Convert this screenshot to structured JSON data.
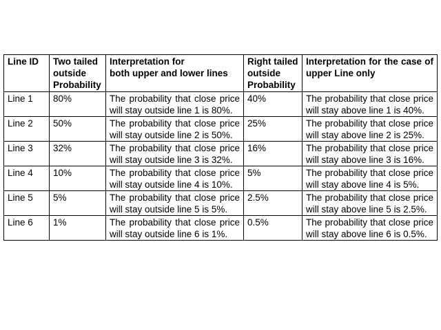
{
  "page": {
    "background_color": "#ffffff",
    "text_color": "#000000",
    "border_color": "#000000"
  },
  "table": {
    "columns": [
      {
        "label": "Line ID"
      },
      {
        "label": "Two tailed\noutside\nProbability"
      },
      {
        "label": "Interpretation for\nboth upper and lower lines"
      },
      {
        "label": "Right tailed\noutside\nProbability"
      },
      {
        "label": "Interpretation for the case of\nupper Line only"
      }
    ],
    "rows": [
      {
        "line_id": "Line 1",
        "two_tailed_probability": "80%",
        "both_lines_interpretation": "The probability that close price\nwill stay outside line 1 is 80%.",
        "right_tailed_probability": "40%",
        "upper_line_interpretation": "The probability that close price\nwill stay above line 1 is 40%."
      },
      {
        "line_id": "Line 2",
        "two_tailed_probability": "50%",
        "both_lines_interpretation": "The probability that close price\nwill stay outside line 2 is 50%.",
        "right_tailed_probability": "25%",
        "upper_line_interpretation": "The probability that close price\nwill stay above line 2 is 25%."
      },
      {
        "line_id": "Line 3",
        "two_tailed_probability": "32%",
        "both_lines_interpretation": "The probability that close price\nwill stay outside line 3 is 32%.",
        "right_tailed_probability": "16%",
        "upper_line_interpretation": "The probability that close price\nwill stay above line 3 is 16%."
      },
      {
        "line_id": "Line 4",
        "two_tailed_probability": "10%",
        "both_lines_interpretation": "The probability that close price\nwill stay outside line 4 is 10%.",
        "right_tailed_probability": "5%",
        "upper_line_interpretation": "The probability that close price\nwill stay above line 4 is 5%."
      },
      {
        "line_id": "Line 5",
        "two_tailed_probability": "5%",
        "both_lines_interpretation": "The probability that close price\nwill stay outside line 5 is 5%.",
        "right_tailed_probability": "2.5%",
        "upper_line_interpretation": "The probability that close price\nwill stay above line 5 is 2.5%."
      },
      {
        "line_id": "Line 6",
        "two_tailed_probability": "1%",
        "both_lines_interpretation": "The probability that close price\nwill stay outside line 6 is 1%.",
        "right_tailed_probability": "0.5%",
        "upper_line_interpretation": "The probability that close price\nwill stay above line 6 is 0.5%."
      }
    ]
  }
}
